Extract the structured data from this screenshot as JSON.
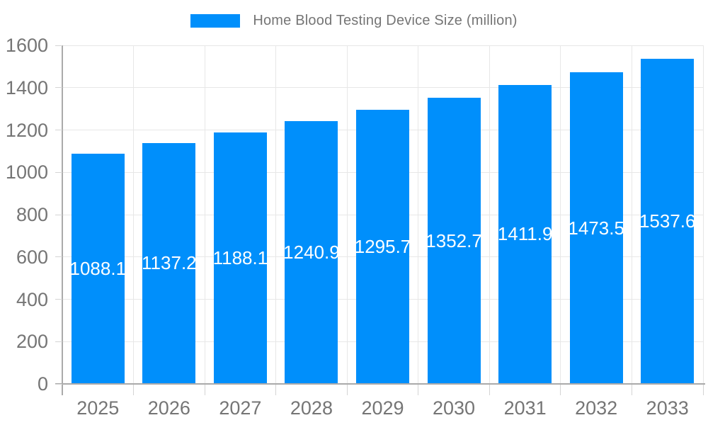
{
  "chart_data": {
    "type": "bar",
    "title": "Home Blood Testing Device Size (million)",
    "categories": [
      "2025",
      "2026",
      "2027",
      "2028",
      "2029",
      "2030",
      "2031",
      "2032",
      "2033"
    ],
    "values": [
      1088.1,
      1137.2,
      1188.1,
      1240.9,
      1295.7,
      1352.7,
      1411.9,
      1473.5,
      1537.6
    ],
    "value_labels": [
      "1088.1",
      "1137.2",
      "1188.1",
      "1240.9",
      "1295.7",
      "1352.7",
      "1411.9",
      "1473.5",
      "1537.6"
    ],
    "xlabel": "",
    "ylabel": "",
    "ylim": [
      0,
      1600
    ],
    "yticks": [
      0,
      200,
      400,
      600,
      800,
      1000,
      1200,
      1400,
      1600
    ],
    "grid": "both",
    "legend_position": "top",
    "value_label_position": "inside-center"
  },
  "colors": {
    "bar": "#008FFB",
    "axis": "#aaaaaa",
    "grid": "#e7e7e7",
    "tick": "#d4d4d4",
    "label": "#757575",
    "value_label": "#ffffff",
    "background": "#ffffff"
  }
}
